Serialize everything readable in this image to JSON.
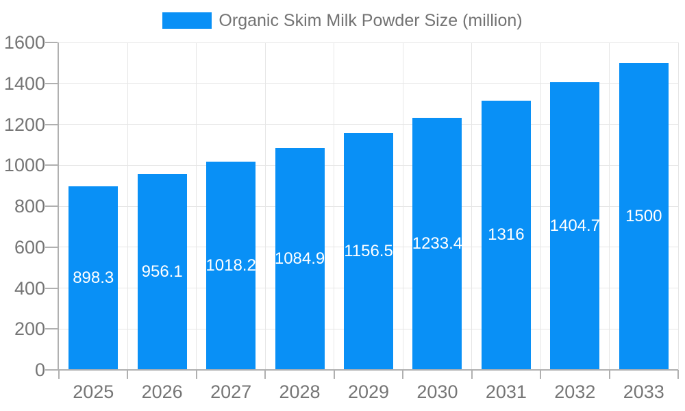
{
  "legend": {
    "label": "Organic Skim Milk Powder Size (million)"
  },
  "colors": {
    "bar": "#0990f6",
    "axis_line": "#b0b0b0",
    "grid_line": "#e6e6e6",
    "axis_text": "#757575",
    "legend_text": "#737373",
    "bar_label_text": "#ffffff",
    "background": "#ffffff"
  },
  "chart_data": {
    "type": "bar",
    "title": "Organic Skim Milk Powder Size (million)",
    "categories": [
      "2025",
      "2026",
      "2027",
      "2028",
      "2029",
      "2030",
      "2031",
      "2032",
      "2033"
    ],
    "series": [
      {
        "name": "Organic Skim Milk Powder Size (million)",
        "values": [
          898.3,
          956.1,
          1018.2,
          1084.9,
          1156.5,
          1233.4,
          1316,
          1404.7,
          1500
        ]
      }
    ],
    "bar_value_labels": [
      "898.3",
      "956.1",
      "1018.2",
      "1084.9",
      "1156.5",
      "1233.4",
      "1316",
      "1404.7",
      "1500"
    ],
    "xlabel": "",
    "ylabel": "",
    "ylim": [
      0,
      1600
    ],
    "y_ticks": [
      0,
      200,
      400,
      600,
      800,
      1000,
      1200,
      1400,
      1600
    ],
    "grid": true,
    "legend_position": "top-center",
    "bar_label_position": "inside-middle"
  }
}
